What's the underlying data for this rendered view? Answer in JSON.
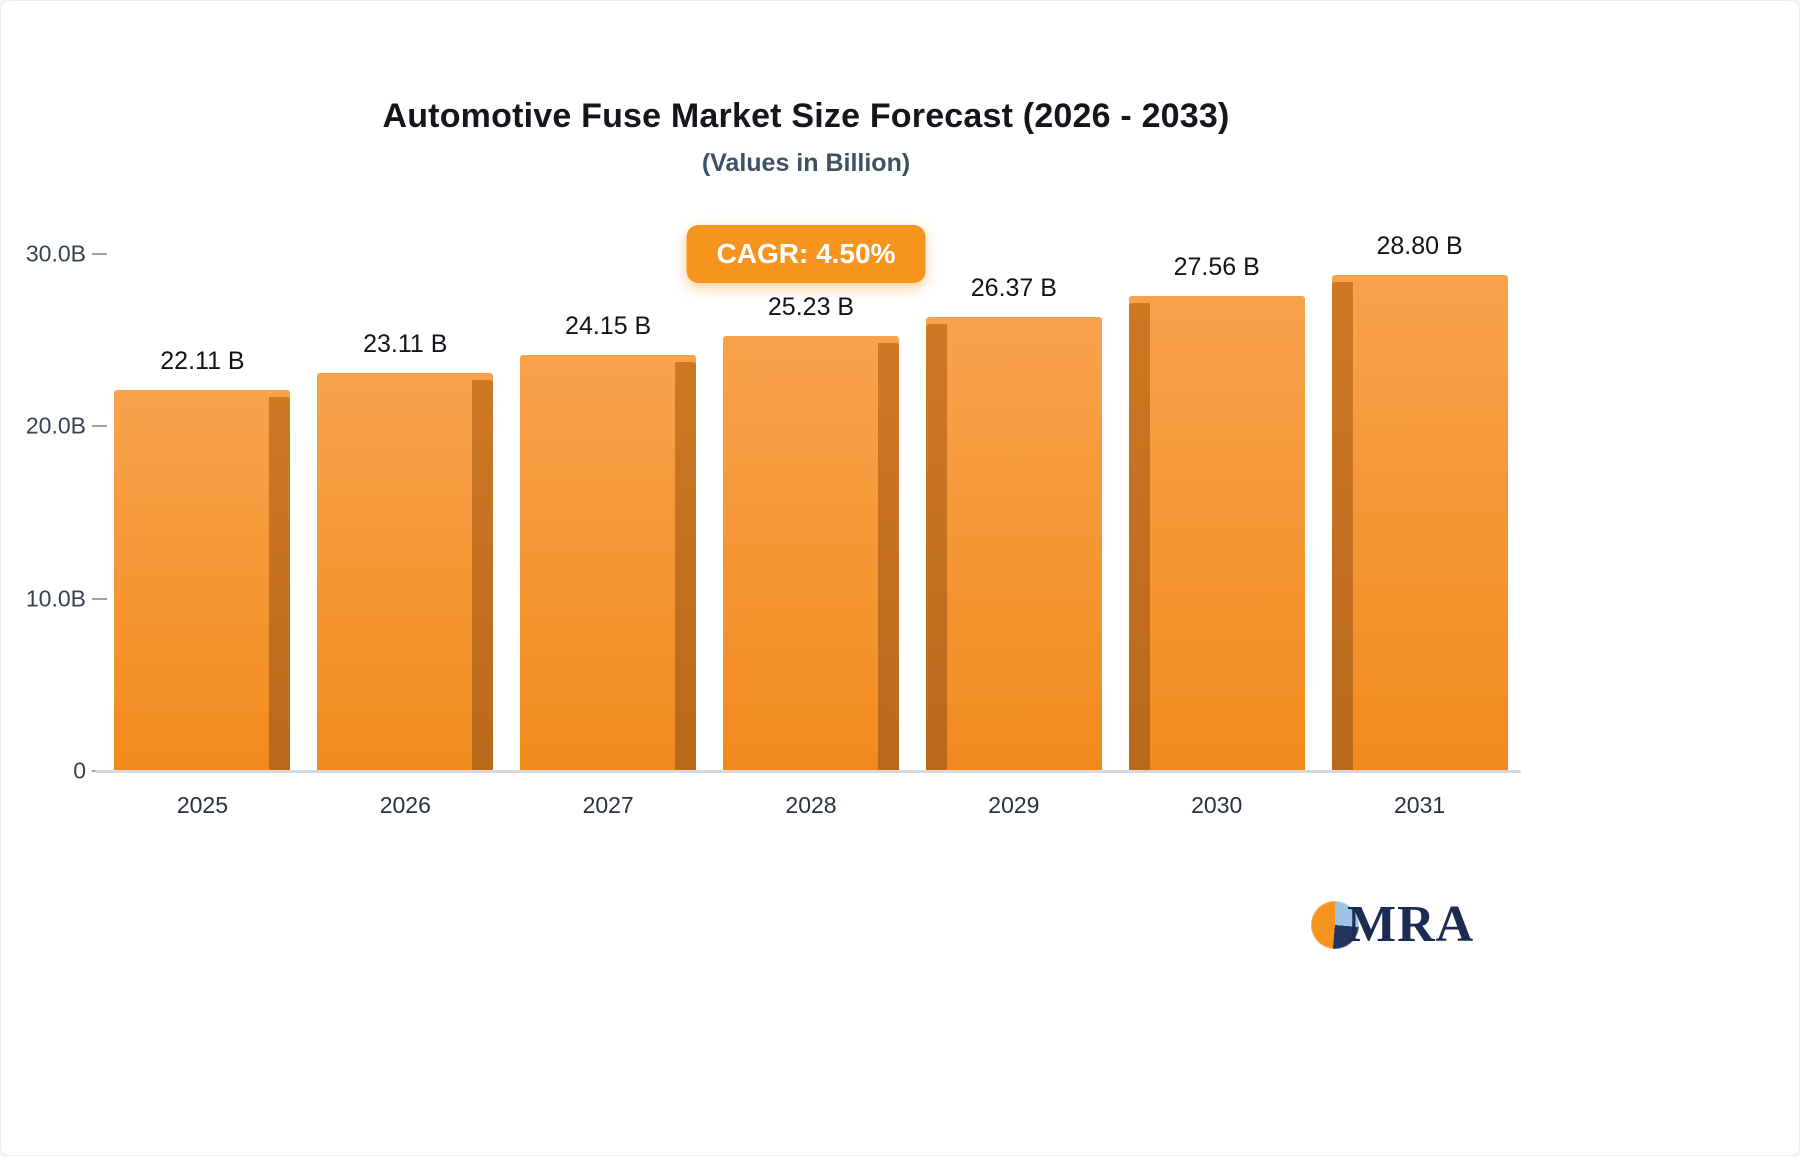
{
  "header": {
    "title": "Automotive Fuse Market Size Forecast (2026 - 2033)",
    "subtitle": "(Values in Billion)"
  },
  "badge": {
    "label": "CAGR: 4.50%"
  },
  "chart_data": {
    "type": "bar",
    "title": "Automotive Fuse Market Size Forecast (2026 - 2033)",
    "subtitle": "(Values in Billion)",
    "annotation": "CAGR: 4.50%",
    "categories": [
      "2025",
      "2026",
      "2027",
      "2028",
      "2029",
      "2030",
      "2031"
    ],
    "values": [
      22.11,
      23.11,
      24.15,
      25.23,
      26.37,
      27.56,
      28.8
    ],
    "value_labels": [
      "22.11 B",
      "23.11 B",
      "24.15 B",
      "25.23 B",
      "26.37 B",
      "27.56 B",
      "28.80 B"
    ],
    "yticks": [
      {
        "label": "30.0B",
        "value": 30
      },
      {
        "label": "20.0B",
        "value": 20
      },
      {
        "label": "10.0B",
        "value": 10
      },
      {
        "label": "0",
        "value": 0
      }
    ],
    "ylim": [
      0,
      30
    ],
    "xlabel": "",
    "ylabel": "",
    "grid": false,
    "legend": "none",
    "bar_color_top": "#F9A24C",
    "bar_color_bottom": "#F18A1D",
    "bar_side_color": "#C06F1E",
    "accent_color": "#F7941E"
  },
  "logo": {
    "text": "MRA"
  }
}
